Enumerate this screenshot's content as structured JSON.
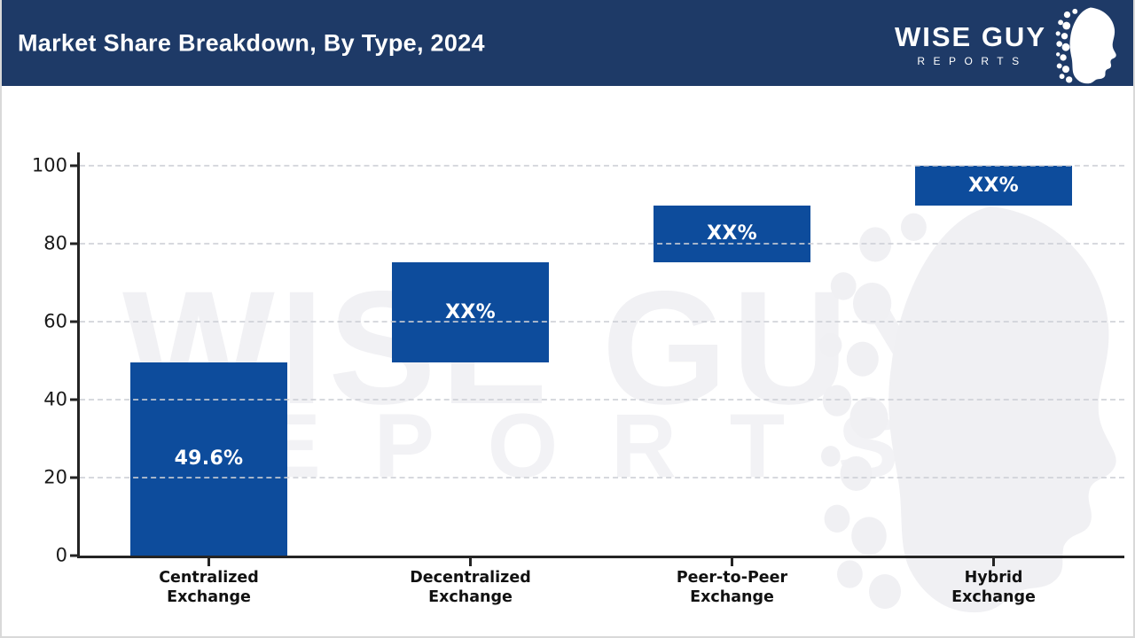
{
  "header": {
    "title": "Market Share Breakdown, By Type, 2024",
    "brand_line1": "WISE GUY",
    "brand_line2": "REPORTS",
    "bg_color": "#1e3a67",
    "text_color": "#ffffff"
  },
  "watermark": {
    "line1": "WISE GUY",
    "line2": "REPORTS",
    "color": "#f1f1f4"
  },
  "chart_data": {
    "type": "bar",
    "subtype": "waterfall",
    "title": "Market Share Breakdown, By Type, 2024",
    "categories": [
      "Centralized\nExchange",
      "Decentralized\nExchange",
      "Peer-to-Peer\nExchange",
      "Hybrid Exchange"
    ],
    "segments": [
      {
        "category": "Centralized Exchange",
        "start": 0,
        "end": 49.6,
        "label": "49.6%"
      },
      {
        "category": "Decentralized Exchange",
        "start": 49.6,
        "end": 75.2,
        "label": "XX%"
      },
      {
        "category": "Peer-to-Peer Exchange",
        "start": 75.2,
        "end": 89.8,
        "label": "XX%"
      },
      {
        "category": "Hybrid Exchange",
        "start": 89.8,
        "end": 100,
        "label": "XX%"
      }
    ],
    "bar_color": "#0d4c9c",
    "label_color": "#ffffff",
    "ylim": [
      0,
      100
    ],
    "yticks": [
      0,
      20,
      40,
      60,
      80,
      100
    ],
    "xlabel": "",
    "ylabel": "",
    "grid": "dashed-horizontal",
    "legend": "none"
  }
}
